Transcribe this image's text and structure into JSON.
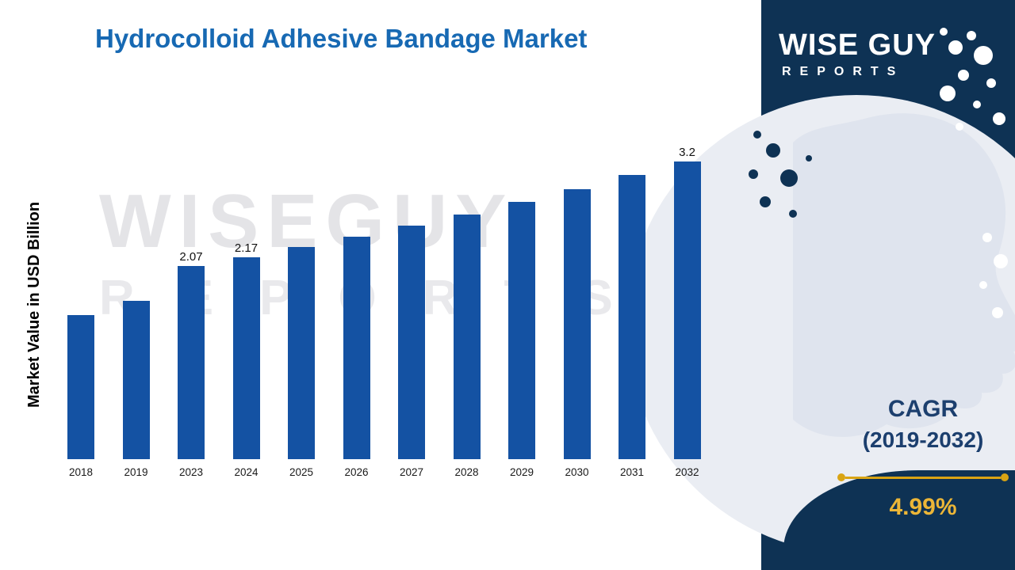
{
  "page": {
    "title": "Hydrocolloid Adhesive Bandage Market"
  },
  "logo": {
    "line1": "WISE GUY",
    "line2": "REPORTS"
  },
  "watermark": {
    "line1": "WISEGUY",
    "line2": "REPORTS"
  },
  "cagr": {
    "label": "CAGR",
    "range": "(2019-2032)",
    "value": "4.99%"
  },
  "colors": {
    "navy": "#0e3254",
    "bar": "#1452a3",
    "title": "#1769b3",
    "gold": "#d9a414",
    "circle": "#eaedf3"
  },
  "chart_data": {
    "type": "bar",
    "title": "Hydrocolloid Adhesive Bandage Market",
    "xlabel": "",
    "ylabel": "Market Value in USD Billion",
    "ylim": [
      0,
      3.4
    ],
    "grid": false,
    "legend": "none",
    "bar_color": "#1452a3",
    "categories": [
      "2018",
      "2019",
      "2023",
      "2024",
      "2025",
      "2026",
      "2027",
      "2028",
      "2029",
      "2030",
      "2031",
      "2032"
    ],
    "values": [
      1.55,
      1.7,
      2.07,
      2.17,
      2.28,
      2.39,
      2.51,
      2.63,
      2.76,
      2.9,
      3.05,
      3.2
    ],
    "labels": {
      "2023": "2.07",
      "2024": "2.17",
      "2032": "3.2"
    }
  }
}
